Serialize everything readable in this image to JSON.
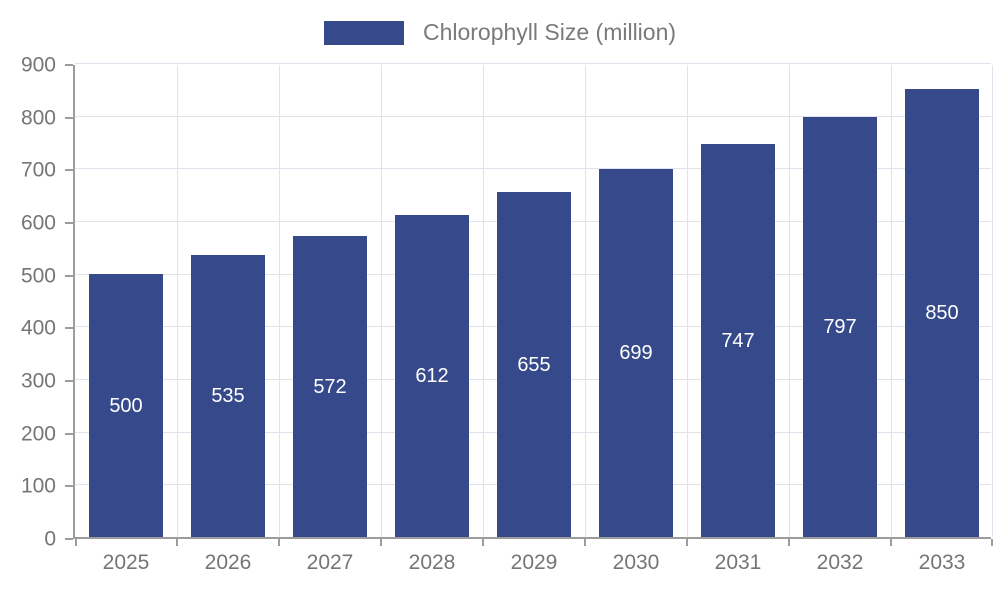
{
  "legend": {
    "label": "Chlorophyll Size (million)"
  },
  "colors": {
    "bar": "#36498A",
    "axis_text": "#757575",
    "grid_line": "#E0E3EB",
    "axis_line": "#9C9C9C",
    "value_label": "#FFFFFF",
    "legend_text": "#7A7A7A"
  },
  "chart_data": {
    "type": "bar",
    "title": "Chlorophyll Size (million)",
    "categories": [
      "2025",
      "2026",
      "2027",
      "2028",
      "2029",
      "2030",
      "2031",
      "2032",
      "2033"
    ],
    "values": [
      500,
      535,
      572,
      612,
      655,
      699,
      747,
      797,
      850
    ],
    "xlabel": "",
    "ylabel": "",
    "ylim": [
      0,
      900
    ],
    "ytick_interval": 100,
    "ytick_labels": [
      "0",
      "100",
      "200",
      "300",
      "400",
      "500",
      "600",
      "700",
      "800",
      "900"
    ],
    "grid": true,
    "legend_position": "top-center",
    "value_label_position": "inside-center"
  }
}
